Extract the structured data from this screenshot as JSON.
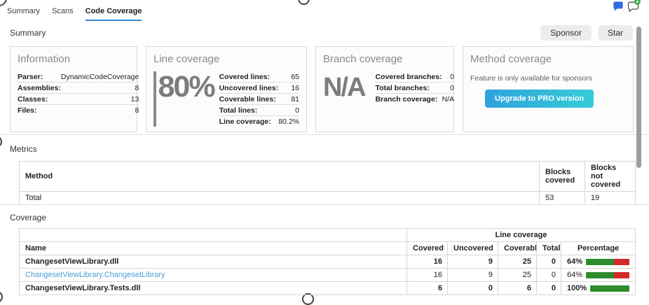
{
  "tabs": {
    "items": [
      {
        "label": "Summary"
      },
      {
        "label": "Scans"
      },
      {
        "label": "Code Coverage"
      }
    ],
    "active": "Code Coverage"
  },
  "icons": {
    "feedback_chat": "filled-chat-bubble",
    "add_comment": "chat-bubble-with-plus",
    "add_comment_glyph": "+"
  },
  "summary_section": {
    "title": "Summary",
    "sponsor_button": "Sponsor",
    "star_button": "Star"
  },
  "cards": {
    "information": {
      "title": "Information",
      "rows": [
        {
          "label": "Parser:",
          "value": "DynamicCodeCoverage"
        },
        {
          "label": "Assemblies:",
          "value": "8"
        },
        {
          "label": "Classes:",
          "value": "13"
        },
        {
          "label": "Files:",
          "value": "8"
        }
      ]
    },
    "line_coverage": {
      "title": "Line coverage",
      "big_value": "80%",
      "rows": [
        {
          "label": "Covered lines:",
          "value": "65"
        },
        {
          "label": "Uncovered lines:",
          "value": "16"
        },
        {
          "label": "Coverable lines:",
          "value": "81"
        },
        {
          "label": "Total lines:",
          "value": "0"
        },
        {
          "label": "Line coverage:",
          "value": "80.2%"
        }
      ]
    },
    "branch_coverage": {
      "title": "Branch coverage",
      "big_value": "N/A",
      "rows": [
        {
          "label": "Covered branches:",
          "value": "0"
        },
        {
          "label": "Total branches:",
          "value": "0"
        },
        {
          "label": "Branch coverage:",
          "value": "N/A"
        }
      ]
    },
    "method_coverage": {
      "title": "Method coverage",
      "note": "Feature is only available for sponsors",
      "button": "Upgrade to PRO version"
    }
  },
  "metrics": {
    "title": "Metrics",
    "columns": {
      "method": "Method",
      "blocks_covered": "Blocks covered",
      "blocks_not_covered": "Blocks not covered"
    },
    "rows": [
      {
        "method": "Total",
        "blocks_covered": "53",
        "blocks_not_covered": "19"
      }
    ]
  },
  "coverage": {
    "title": "Coverage",
    "group_header": "Line coverage",
    "columns": {
      "name": "Name",
      "covered": "Covered",
      "uncovered": "Uncovered",
      "coverable": "Coverable",
      "total": "Total",
      "percentage": "Percentage"
    },
    "rows": [
      {
        "name": "ChangesetViewLibrary.dll",
        "covered": "16",
        "uncovered": "9",
        "coverable": "25",
        "total": "0",
        "percentage": "64%",
        "bar_pct": 64
      },
      {
        "name": "ChangesetViewLibrary.ChangesetLibrary",
        "covered": "16",
        "uncovered": "9",
        "coverable": "25",
        "total": "0",
        "percentage": "64%",
        "bar_pct": 64
      },
      {
        "name": "ChangesetViewLibrary.Tests.dll",
        "covered": "6",
        "uncovered": "0",
        "coverable": "6",
        "total": "0",
        "percentage": "100%",
        "bar_pct": 100
      }
    ]
  },
  "colors": {
    "accent": "#2b87d8",
    "link": "#4a9fd8",
    "green": "#2e8b2e",
    "red": "#d42a2a",
    "btn_a": "#2fa3dc",
    "btn_b": "#36ccd8",
    "chat_blue": "#2e6be5",
    "badge_green": "#3fae49"
  }
}
